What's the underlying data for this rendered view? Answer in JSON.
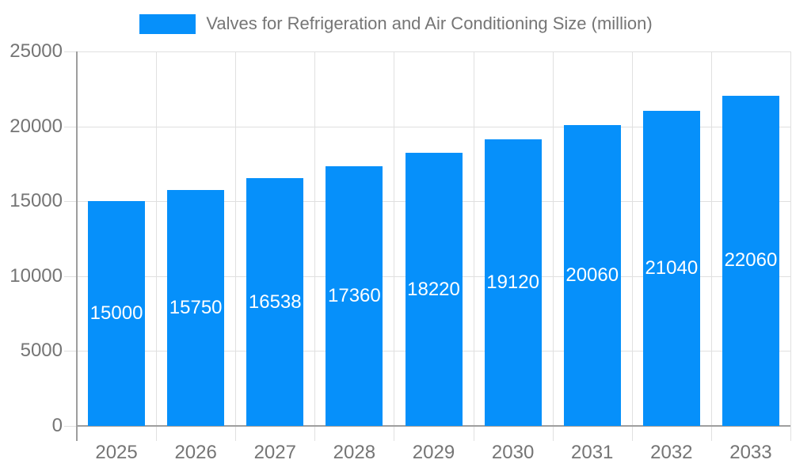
{
  "chart_data": {
    "type": "bar",
    "title": "Valves for Refrigeration and Air Conditioning Size (million)",
    "categories": [
      "2025",
      "2026",
      "2027",
      "2028",
      "2029",
      "2030",
      "2031",
      "2032",
      "2033"
    ],
    "values": [
      15000,
      15750,
      16538,
      17360,
      18220,
      19120,
      20060,
      21040,
      22060
    ],
    "xlabel": "",
    "ylabel": "",
    "ylim": [
      0,
      25000
    ],
    "yticks": [
      0,
      5000,
      10000,
      15000,
      20000,
      25000
    ],
    "ytick_labels": [
      "0",
      "5000",
      "10000",
      "15000",
      "20000",
      "25000"
    ],
    "grid": "horizontal and vertical gridlines on",
    "legend_position": "top-center",
    "value_labels_inside_bars": true
  },
  "colors": {
    "bar": "#0690fa",
    "axis": "#9e9e9e",
    "grid": "#e0e0e0",
    "tick_text": "#757575",
    "title_text": "#757575",
    "bar_label_text": "#ffffff",
    "background": "#ffffff"
  }
}
